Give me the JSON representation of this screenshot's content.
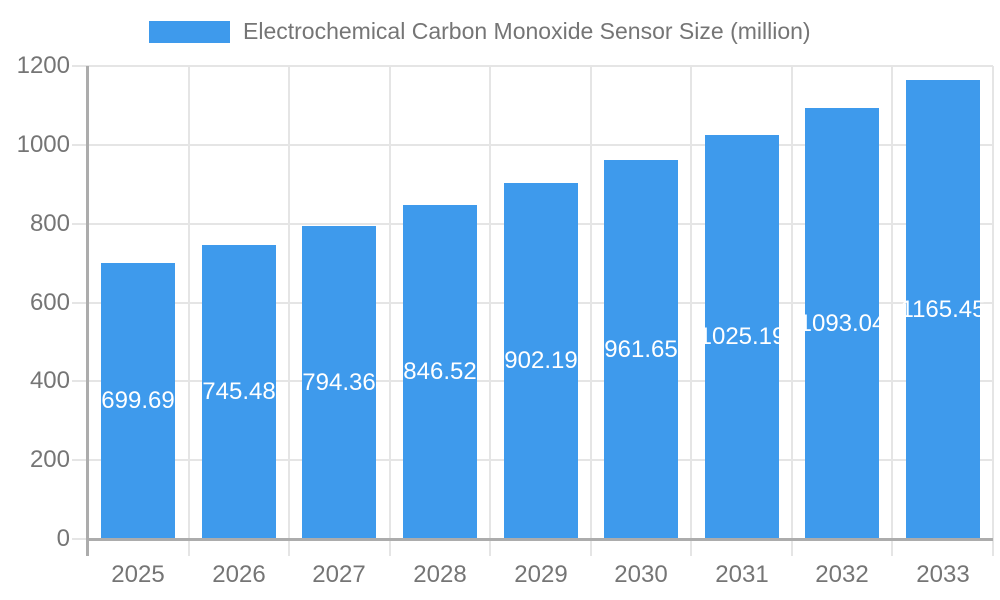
{
  "chart_data": {
    "type": "bar",
    "title": "Electrochemical Carbon Monoxide Sensor Size (million)",
    "categories": [
      "2025",
      "2026",
      "2027",
      "2028",
      "2029",
      "2030",
      "2031",
      "2032",
      "2033"
    ],
    "values": [
      699.69,
      745.48,
      794.36,
      846.52,
      902.19,
      961.65,
      1025.19,
      1093.04,
      1165.45
    ],
    "value_labels": [
      "699.69",
      "745.48",
      "794.36",
      "846.52",
      "902.19",
      "961.65",
      "1025.19",
      "1093.04",
      "1165.45"
    ],
    "xlabel": "",
    "ylabel": "",
    "ylim": [
      0,
      1200
    ],
    "yticks": [
      0,
      200,
      400,
      600,
      800,
      1000,
      1200
    ],
    "ytick_labels": [
      "0",
      "200",
      "400",
      "600",
      "800",
      "1000",
      "1200"
    ],
    "grid": true,
    "legend_position": "top",
    "colors": {
      "bar": "#3E9AEC",
      "value_label": "#FFFFFF",
      "axis_text": "#757575",
      "grid_line": "#E5E5E5",
      "axis_line": "#ACACAC",
      "background": "#FFFFFF"
    }
  }
}
